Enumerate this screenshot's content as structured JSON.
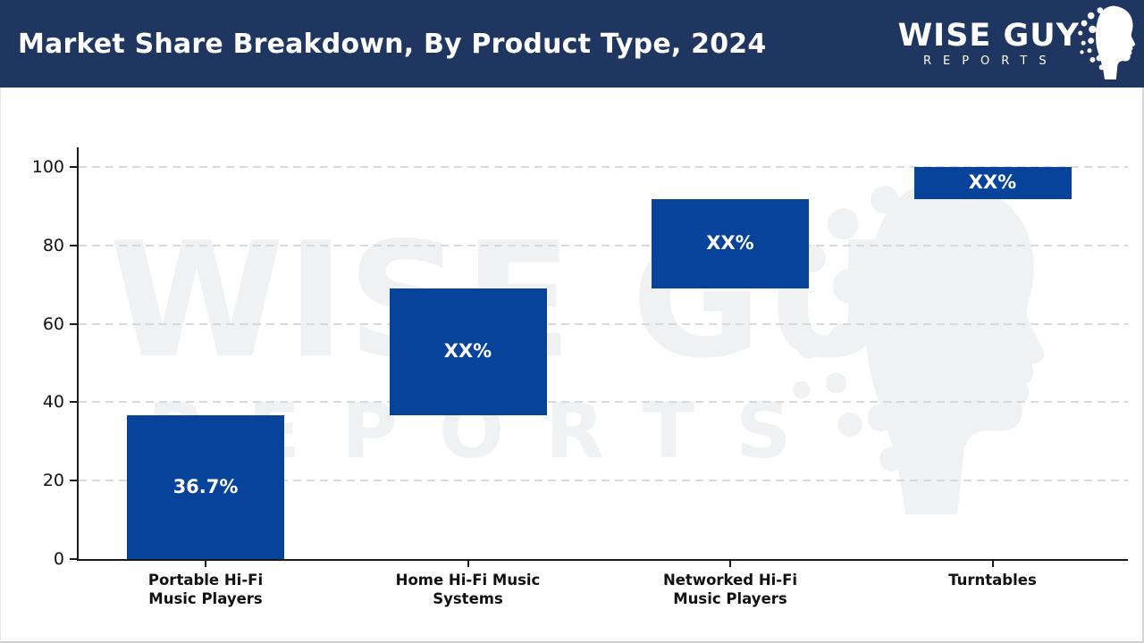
{
  "header": {
    "title": "Market Share Breakdown, By Product Type, 2024"
  },
  "logo": {
    "line1": "WISE GUY",
    "line2": "REPORTS",
    "face_icon": "dotted-face-profile",
    "text_color": "#ffffff"
  },
  "watermark": {
    "line1": "WISE GUY",
    "line2": "REPORTS",
    "color": "#f0f1f3"
  },
  "colors": {
    "header_bg": "#1f3660",
    "bar": "#08439b",
    "bar_label": "#ffffff",
    "grid": "#d9d9d9",
    "axis": "#1a1a1a",
    "tick_text": "#111111",
    "page_bg": "#ffffff"
  },
  "chart_data": {
    "type": "bar",
    "subtype": "waterfall",
    "title": "Market Share Breakdown, By Product Type, 2024",
    "categories": [
      "Portable Hi-Fi\nMusic Players",
      "Home Hi-Fi Music\nSystems",
      "Networked Hi-Fi\nMusic Players",
      "Turntables"
    ],
    "segments": [
      {
        "category": "Portable Hi-Fi Music Players",
        "start": 0,
        "end": 36.7,
        "label": "36.7%"
      },
      {
        "category": "Home Hi-Fi Music Systems",
        "start": 36.7,
        "end": 69.1,
        "label": "XX%"
      },
      {
        "category": "Networked Hi-Fi Music Players",
        "start": 69.1,
        "end": 91.8,
        "label": "XX%"
      },
      {
        "category": "Turntables",
        "start": 91.8,
        "end": 100,
        "label": "XX%"
      }
    ],
    "xlabel": "",
    "ylabel": "",
    "ylim": [
      0,
      100
    ],
    "yticks": [
      0,
      20,
      40,
      60,
      80,
      100
    ],
    "grid": "horizontal-dashed",
    "legend": "none"
  }
}
